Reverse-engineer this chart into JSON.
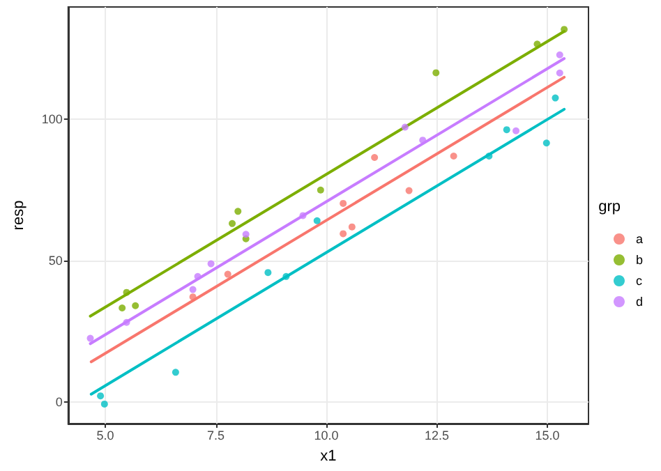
{
  "chart_data": {
    "type": "scatter",
    "xlabel": "x1",
    "ylabel": "resp",
    "legend_title": "grp",
    "legend": "right",
    "grid": true,
    "marker": "circle",
    "xlim": [
      4.16,
      15.93
    ],
    "xticks": [
      {
        "value": 5,
        "label": "5.0"
      },
      7.5,
      {
        "value": 10,
        "label": "10.0"
      },
      12.5,
      {
        "value": 15,
        "label": "15.0"
      }
    ],
    "ylim": [
      -7.5,
      139.5
    ],
    "yticks": [
      0,
      50,
      100
    ],
    "series": [
      {
        "name": "a",
        "color": "#f8766d",
        "x": [
          6.98,
          7.77,
          10.38,
          10.58,
          10.38,
          11.09,
          11.87,
          12.88
        ],
        "values": [
          37.2,
          45.2,
          59.5,
          61.9,
          70.2,
          86.4,
          74.7,
          86.9
        ]
      },
      {
        "name": "b",
        "color": "#7cae00",
        "x": [
          5.38,
          5.48,
          5.68,
          7.87,
          8.0,
          8.18,
          9.87,
          12.48,
          14.77,
          15.38
        ],
        "values": [
          33.3,
          38.8,
          34.1,
          63.1,
          67.4,
          57.7,
          74.9,
          116.3,
          126.4,
          131.6
        ]
      },
      {
        "name": "c",
        "color": "#00bfc4",
        "x": [
          4.89,
          4.98,
          6.59,
          8.68,
          9.09,
          9.79,
          13.68,
          14.08,
          14.98,
          15.18
        ],
        "values": [
          2.3,
          -0.6,
          10.6,
          45.8,
          44.4,
          64.1,
          86.9,
          96.2,
          91.5,
          107.4
        ]
      },
      {
        "name": "d",
        "color": "#c77cff",
        "x": [
          4.66,
          5.48,
          6.98,
          7.09,
          7.39,
          8.18,
          9.47,
          11.78,
          12.18,
          14.29,
          15.28,
          15.28
        ],
        "values": [
          22.6,
          28.2,
          39.8,
          44.4,
          48.9,
          59.3,
          65.9,
          97.1,
          92.5,
          95.8,
          122.6,
          116.2
        ]
      },
      {
        "type": "line",
        "color": "#f8766d",
        "marker": "none",
        "x": [
          4.68,
          15.38
        ],
        "values": [
          14.3,
          114.7
        ]
      },
      {
        "type": "line",
        "color": "#7cae00",
        "marker": "none",
        "x": [
          4.66,
          15.38
        ],
        "values": [
          30.4,
          130.9
        ]
      },
      {
        "type": "line",
        "color": "#00bfc4",
        "marker": "none",
        "x": [
          4.68,
          15.38
        ],
        "values": [
          2.9,
          103.4
        ]
      },
      {
        "type": "line",
        "color": "#c77cff",
        "marker": "none",
        "x": [
          4.66,
          15.38
        ],
        "values": [
          20.7,
          121.3
        ]
      }
    ]
  }
}
